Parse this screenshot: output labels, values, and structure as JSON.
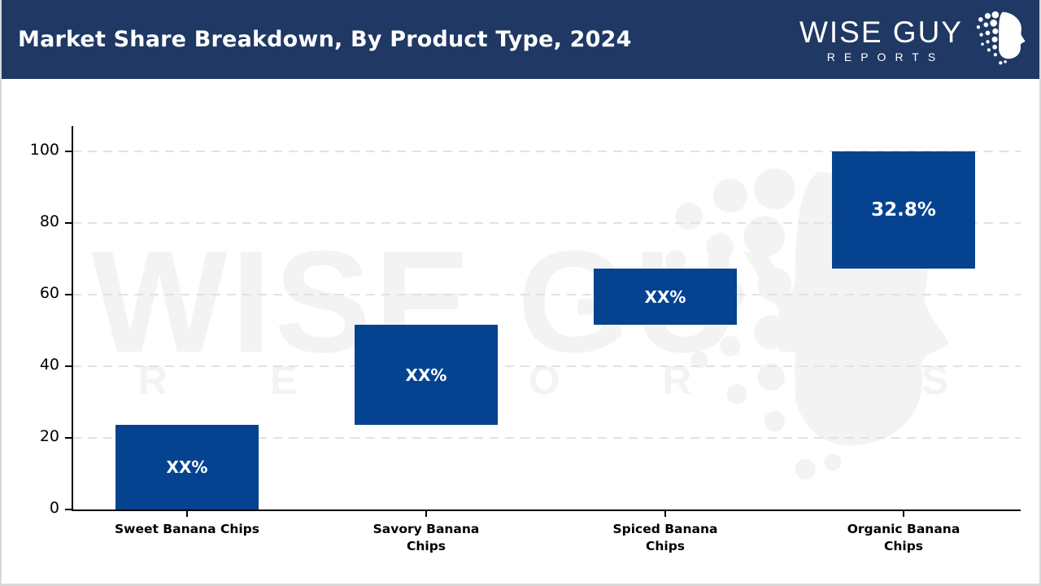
{
  "header": {
    "logo": {
      "line1": "WISE GUY",
      "line2": "REPORTS"
    }
  },
  "watermark": {
    "line1": "WISE GUY",
    "line2": "R E P O R T S"
  },
  "colors": {
    "header_bg": "#1f3864",
    "bar_blue": "#054390",
    "grid": "#e2e2e2",
    "watermark_gray": "#f3f3f3",
    "frame_border": "#d9d9d9",
    "axis": "#000000",
    "bar_label": "#ffffff"
  },
  "chart_data": {
    "type": "bar",
    "variant": "waterfall",
    "title": "Market Share Breakdown, By Product Type, 2024",
    "categories": [
      "Sweet Banana Chips",
      "Savory Banana Chips",
      "Spiced Banana Chips",
      "Organic Banana Chips"
    ],
    "category_label_lines": [
      [
        "Sweet Banana Chips"
      ],
      [
        "Savory Banana",
        "Chips"
      ],
      [
        "Spiced Banana",
        "Chips"
      ],
      [
        "Organic Banana",
        "Chips"
      ]
    ],
    "segments": [
      {
        "name": "Sweet Banana Chips",
        "start": 0,
        "end": 23.6,
        "label": "XX%",
        "emphasis": false
      },
      {
        "name": "Savory Banana Chips",
        "start": 23.6,
        "end": 51.5,
        "label": "XX%",
        "emphasis": false
      },
      {
        "name": "Spiced Banana Chips",
        "start": 51.5,
        "end": 67.2,
        "label": "XX%",
        "emphasis": false
      },
      {
        "name": "Organic Banana Chips",
        "start": 67.2,
        "end": 100.0,
        "label": "32.8%",
        "emphasis": true
      }
    ],
    "ylabel": "",
    "xlabel": "",
    "ylim": [
      0,
      107
    ],
    "yticks": [
      0,
      20,
      40,
      60,
      80,
      100
    ],
    "grid": {
      "horizontal": true,
      "style": "dashed"
    },
    "legend": "none"
  }
}
